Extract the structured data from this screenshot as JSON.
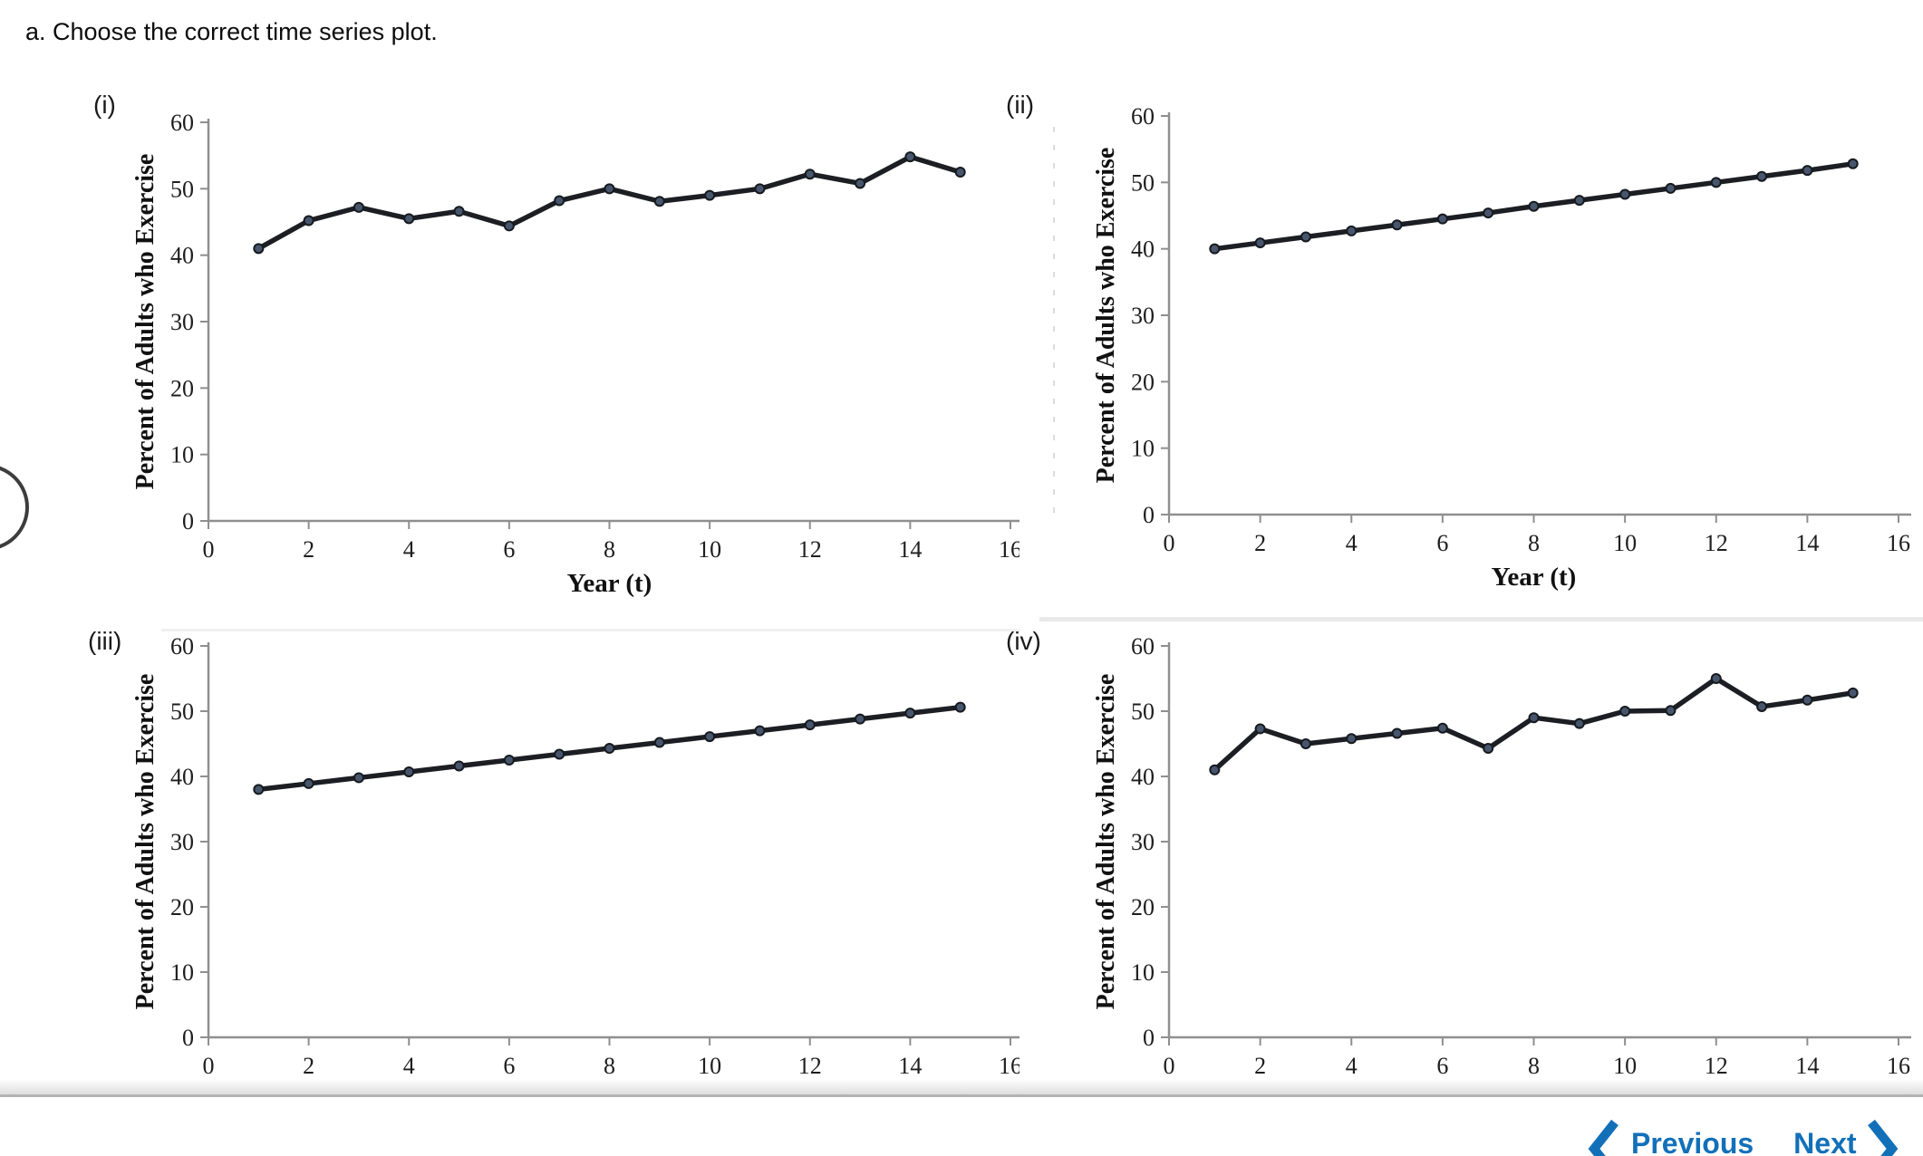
{
  "question": {
    "text": "a. Choose the correct time series plot."
  },
  "nav": {
    "previous_label": "Previous",
    "next_label": "Next"
  },
  "chart_data": [
    {
      "type": "line",
      "label": "(i)",
      "title": "",
      "xlabel": "Year (t)",
      "ylabel": "Percent of Adults who Exercise",
      "x": [
        1,
        2,
        3,
        4,
        5,
        6,
        7,
        8,
        9,
        10,
        11,
        12,
        13,
        14,
        15
      ],
      "values": [
        41,
        45.2,
        47.2,
        45.5,
        46.6,
        44.4,
        48.2,
        50,
        48.1,
        49,
        50,
        52.2,
        50.8,
        54.8,
        52.5
      ],
      "xlim": [
        0,
        16
      ],
      "ylim": [
        0,
        60
      ],
      "xticks": [
        0,
        2,
        4,
        6,
        8,
        10,
        12,
        14,
        16
      ],
      "yticks": [
        0,
        10,
        20,
        30,
        40,
        50,
        60
      ],
      "grid": "off",
      "legend": "none"
    },
    {
      "type": "line",
      "label": "(ii)",
      "title": "",
      "xlabel": "Year (t)",
      "ylabel": "Percent of Adults who Exercise",
      "x": [
        1,
        2,
        3,
        4,
        5,
        6,
        7,
        8,
        9,
        10,
        11,
        12,
        13,
        14,
        15
      ],
      "values": [
        40,
        40.9,
        41.8,
        42.7,
        43.6,
        44.5,
        45.4,
        46.4,
        47.3,
        48.2,
        49.1,
        50,
        50.9,
        51.8,
        52.8
      ],
      "xlim": [
        0,
        16
      ],
      "ylim": [
        0,
        60
      ],
      "xticks": [
        0,
        2,
        4,
        6,
        8,
        10,
        12,
        14,
        16
      ],
      "yticks": [
        0,
        10,
        20,
        30,
        40,
        50,
        60
      ],
      "grid": "off",
      "legend": "none"
    },
    {
      "type": "line",
      "label": "(iii)",
      "title": "",
      "xlabel": "Year (t)",
      "ylabel": "Percent of Adults who Exercise",
      "x": [
        1,
        2,
        3,
        4,
        5,
        6,
        7,
        8,
        9,
        10,
        11,
        12,
        13,
        14,
        15
      ],
      "values": [
        38,
        38.9,
        39.8,
        40.7,
        41.6,
        42.5,
        43.4,
        44.3,
        45.2,
        46.1,
        47,
        47.9,
        48.8,
        49.7,
        50.6
      ],
      "xlim": [
        0,
        16
      ],
      "ylim": [
        0,
        60
      ],
      "xticks": [
        0,
        2,
        4,
        6,
        8,
        10,
        12,
        14,
        16
      ],
      "yticks": [
        0,
        10,
        20,
        30,
        40,
        50,
        60
      ],
      "grid": "off",
      "legend": "none"
    },
    {
      "type": "line",
      "label": "(iv)",
      "title": "",
      "xlabel": "Year (t)",
      "ylabel": "Percent of Adults who Exercise",
      "x": [
        1,
        2,
        3,
        4,
        5,
        6,
        7,
        8,
        9,
        10,
        11,
        12,
        13,
        14,
        15
      ],
      "values": [
        41,
        47.3,
        45,
        45.8,
        46.6,
        47.4,
        44.3,
        49,
        48.1,
        50,
        50.1,
        55,
        50.7,
        51.7,
        52.8
      ],
      "xlim": [
        0,
        16
      ],
      "ylim": [
        0,
        60
      ],
      "xticks": [
        0,
        2,
        4,
        6,
        8,
        10,
        12,
        14,
        16
      ],
      "yticks": [
        0,
        10,
        20,
        30,
        40,
        50,
        60
      ],
      "grid": "off",
      "legend": "none"
    }
  ],
  "colors": {
    "line": "#1c1e23",
    "marker": "#47566c",
    "axis": "#8f8f8f",
    "nav_blue": "#1270b9"
  }
}
